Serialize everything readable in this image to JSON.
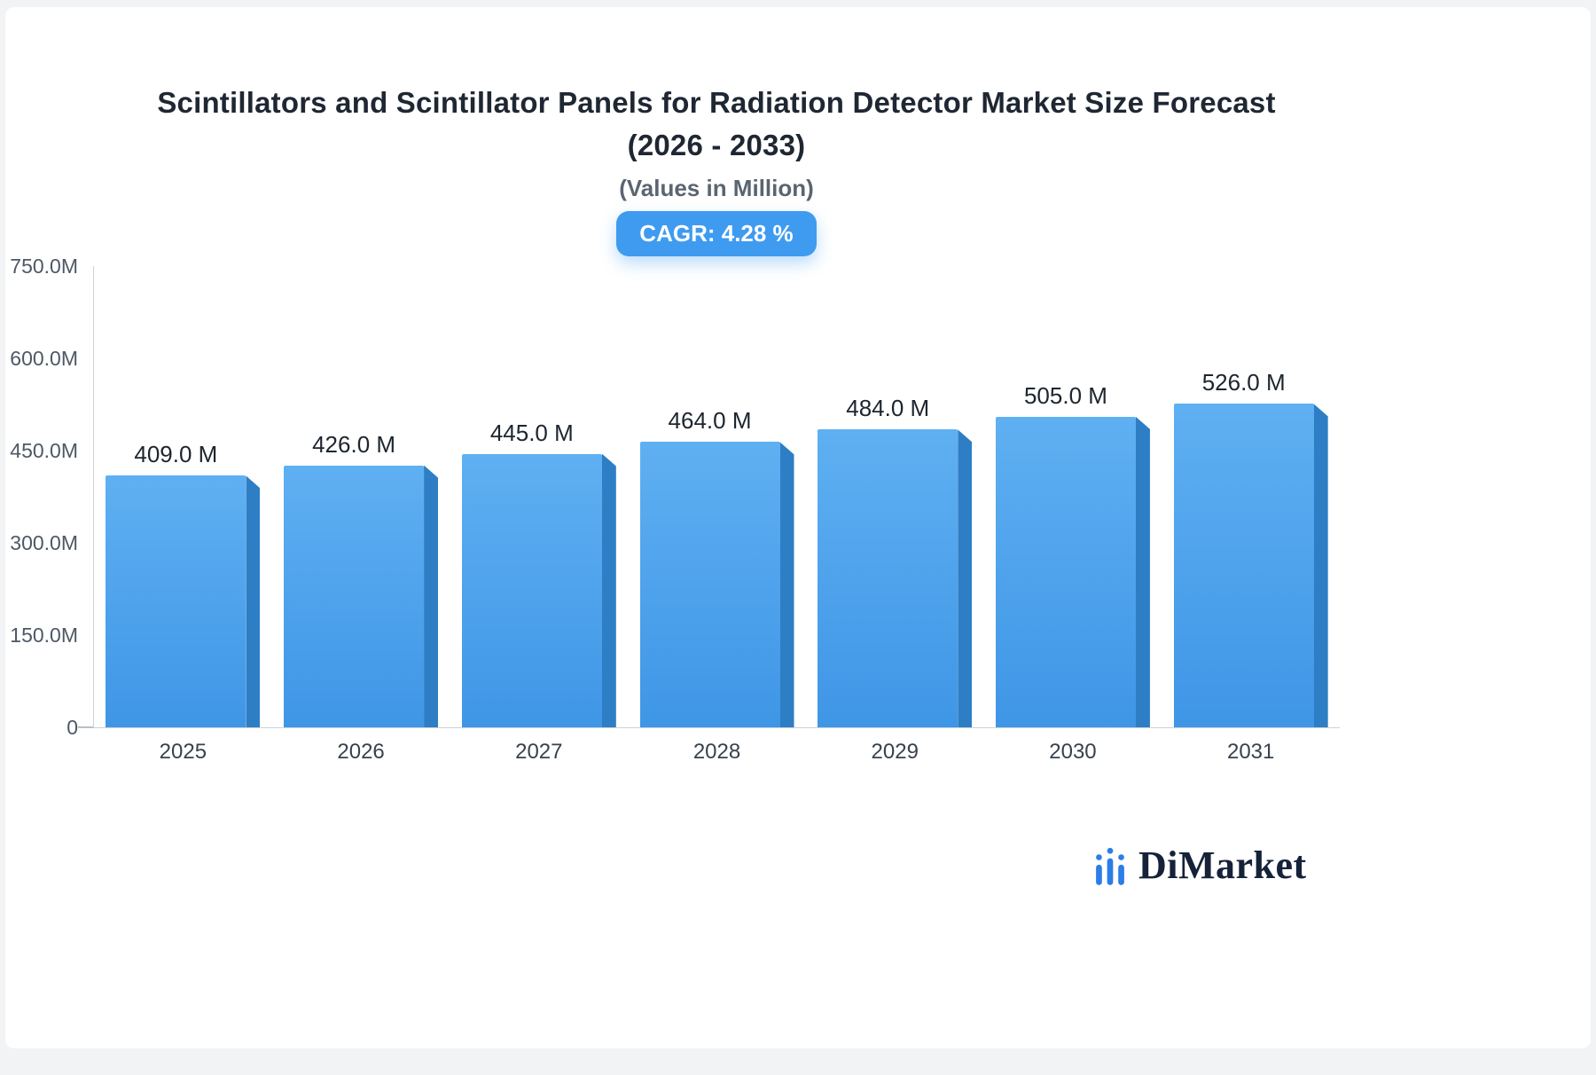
{
  "header": {
    "title_line1": "Scintillators and Scintillator Panels for Radiation Detector Market Size Forecast",
    "title_line2": "(2026 - 2033)",
    "subtitle": "(Values in Million)",
    "cagr_badge": "CAGR: 4.28 %"
  },
  "chart_data": {
    "type": "bar",
    "title": "Scintillators and Scintillator Panels for Radiation Detector Market Size Forecast (2026 - 2033)",
    "subtitle": "Values in Million",
    "categories": [
      "2025",
      "2026",
      "2027",
      "2028",
      "2029",
      "2030",
      "2031"
    ],
    "values": [
      409,
      426,
      445,
      464,
      484,
      505,
      526
    ],
    "value_labels": [
      "409.0 M",
      "426.0 M",
      "445.0 M",
      "464.0 M",
      "484.0 M",
      "505.0 M",
      "526.0 M"
    ],
    "y_ticks": [
      "750.0M",
      "600.0M",
      "450.0M",
      "300.0M",
      "150.0M",
      "0"
    ],
    "ylim": [
      0,
      750
    ],
    "xlabel": "",
    "ylabel": "",
    "grid": false,
    "legend": false,
    "bar_color_top": "#5fb0f2",
    "bar_color_bottom": "#3f96e6",
    "bar_side_color": "#2d7ec5"
  },
  "footer": {
    "brand": "DiMarket",
    "logo_icon": "bar-chart-icon",
    "brand_color": "#2b7de8"
  }
}
